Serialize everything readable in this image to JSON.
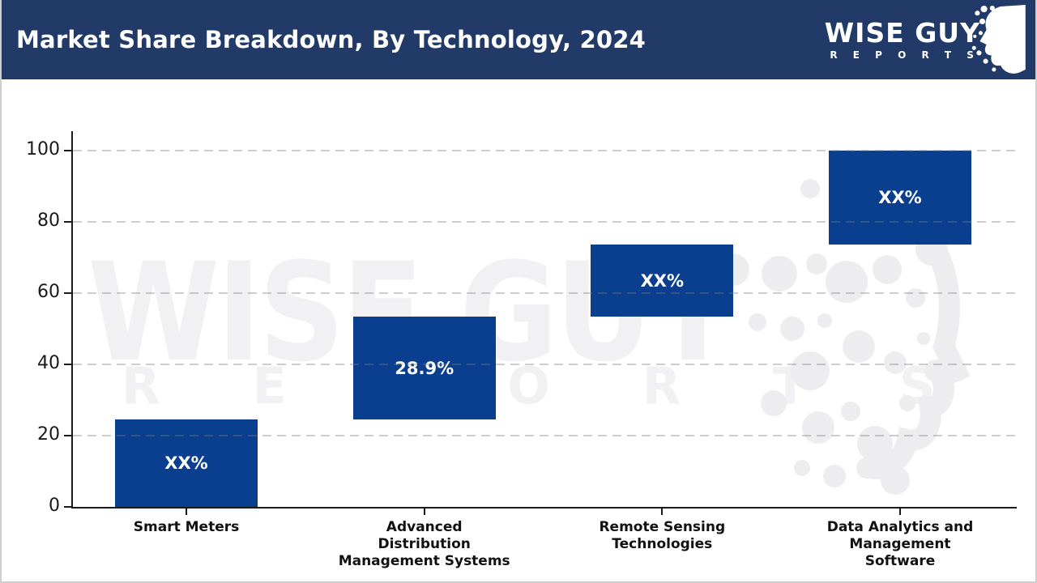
{
  "header": {
    "title": "Market Share Breakdown, By Technology, 2024",
    "logo": {
      "line1": "WISE GUY",
      "line2": "R E P O R T S"
    }
  },
  "watermark": {
    "line1": "WISE GUY",
    "line2": "R E P O R T S"
  },
  "chart_data": {
    "type": "bar",
    "subtype": "waterfall",
    "title": "Market Share Breakdown, By Technology, 2024",
    "categories": [
      "Smart Meters",
      "Advanced\nDistribution\nManagement Systems",
      "Remote Sensing\nTechnologies",
      "Data Analytics and\nManagement\nSoftware"
    ],
    "bar_labels": [
      "XX%",
      "28.9%",
      "XX%",
      "XX%"
    ],
    "segments": [
      {
        "start": 0,
        "end": 24.5
      },
      {
        "start": 24.5,
        "end": 53.4
      },
      {
        "start": 53.4,
        "end": 73.6
      },
      {
        "start": 73.6,
        "end": 100
      }
    ],
    "yticks": [
      0,
      20,
      40,
      60,
      80,
      100
    ],
    "ylim": [
      0,
      105.5
    ],
    "xlabel": "",
    "ylabel": "",
    "grid": "horizontal-dashed",
    "legend": "none",
    "bar_color": "#0a3f90",
    "bar_label_color": "#ffffff",
    "header_color": "#213a67"
  }
}
